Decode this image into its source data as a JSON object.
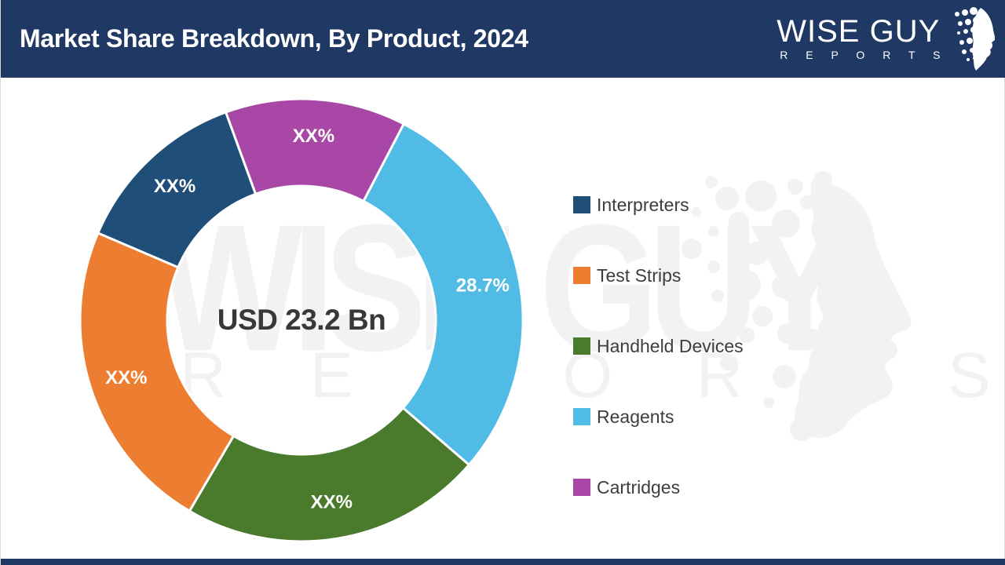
{
  "header": {
    "title": "Market Share Breakdown, By Product, 2024",
    "logo_line1": "WISE GUY",
    "logo_line2": "R E P O R T S"
  },
  "colors": {
    "header_bg": "#1F3864",
    "footer_bg": "#1F3864",
    "watermark_gray": "#f2f2f2"
  },
  "watermark": {
    "line1": "WISE GUY",
    "line2": "R E P O R T S"
  },
  "chart_data": {
    "type": "pie",
    "subtype": "donut",
    "title": "Market Share Breakdown, By Product, 2024",
    "center_label": "USD 23.2 Bn",
    "start_angle_deg": -20,
    "legend_position": "right",
    "segments": [
      {
        "name": "Cartridges",
        "value": 13.2,
        "label": "XX%",
        "color": "#A847A6"
      },
      {
        "name": "Reagents",
        "value": 28.7,
        "label": "28.7%",
        "color": "#50BBE4"
      },
      {
        "name": "Handheld Devices",
        "value": 22.1,
        "label": "XX%",
        "color": "#4A7A2B"
      },
      {
        "name": "Test Strips",
        "value": 23.0,
        "label": "XX%",
        "color": "#ED7D31"
      },
      {
        "name": "Interpreters",
        "value": 13.0,
        "label": "XX%",
        "color": "#1F4E79"
      }
    ]
  },
  "legend": {
    "items": [
      {
        "label": "Interpreters",
        "color": "#1F4E79"
      },
      {
        "label": "Test Strips",
        "color": "#ED7D31"
      },
      {
        "label": "Handheld Devices",
        "color": "#4A7A2B"
      },
      {
        "label": "Reagents",
        "color": "#50BBE4"
      },
      {
        "label": "Cartridges",
        "color": "#A847A6"
      }
    ]
  }
}
